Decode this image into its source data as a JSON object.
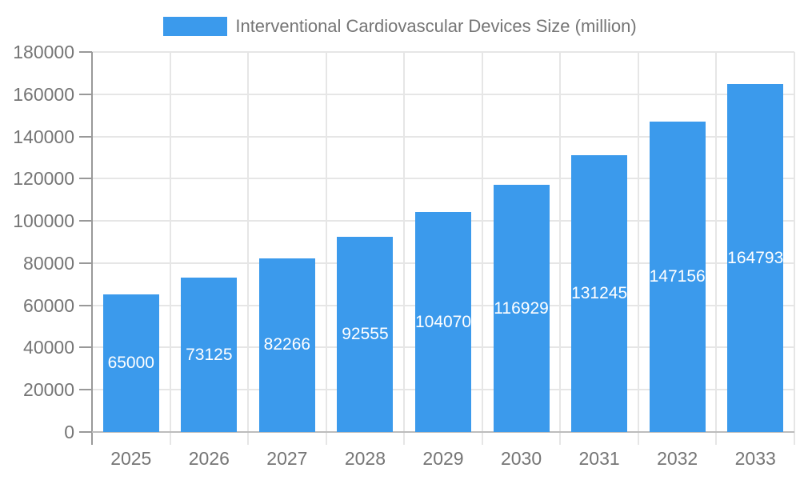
{
  "chart_data": {
    "type": "bar",
    "title": "Interventional Cardiovascular Devices Size (million)",
    "categories": [
      "2025",
      "2026",
      "2027",
      "2028",
      "2029",
      "2030",
      "2031",
      "2032",
      "2033"
    ],
    "series": [
      {
        "name": "Interventional Cardiovascular Devices Size (million)",
        "values": [
          65000,
          73125,
          82266,
          92555,
          104070,
          116929,
          131245,
          147156,
          164793
        ]
      }
    ],
    "bar_value_labels": [
      "65000",
      "73125",
      "82266",
      "92555",
      "104070",
      "116929",
      "131245",
      "147156",
      "164793"
    ],
    "xlabel": "",
    "ylabel": "",
    "ylim": [
      0,
      180000
    ],
    "yticks": [
      "0",
      "20000",
      "40000",
      "60000",
      "80000",
      "100000",
      "120000",
      "140000",
      "160000",
      "180000"
    ],
    "grid": true,
    "legend_position": "top"
  },
  "legend": {
    "label": "Interventional Cardiovascular Devices Size (million)"
  },
  "colors": {
    "bar": "#3b9aec",
    "grid": "#e6e6e6",
    "axis": "#999999",
    "zero_line": "#bdbdbd",
    "tick_text": "#757575",
    "bar_label_text": "#ffffff",
    "background": "#ffffff"
  }
}
